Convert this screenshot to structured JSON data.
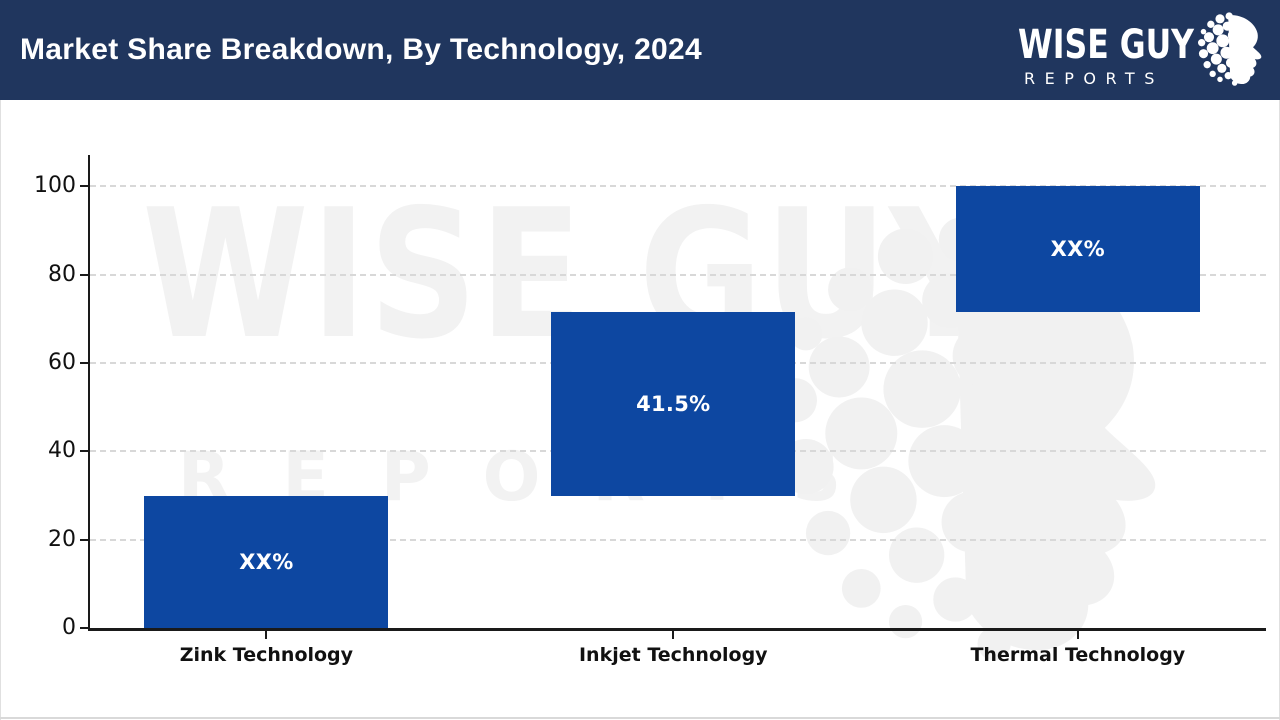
{
  "header": {
    "title": "Market Share Breakdown, By Technology, 2024",
    "bg_color": "#20365e",
    "logo": {
      "name": "WISE GUY REPORTS",
      "line1": "WISE GUY",
      "line2": "REPORTS"
    }
  },
  "watermark": {
    "line1": "WISE GUY",
    "line2": "REPORTS"
  },
  "chart_data": {
    "type": "bar",
    "variant": "floating-segment-waterfall",
    "title": "Market Share Breakdown, By Technology, 2024",
    "categories": [
      "Zink Technology",
      "Inkjet Technology",
      "Thermal Technology"
    ],
    "segments": [
      {
        "category": "Zink Technology",
        "start": 0,
        "end": 30,
        "value": 30,
        "label": "XX%"
      },
      {
        "category": "Inkjet Technology",
        "start": 30,
        "end": 71.5,
        "value": 41.5,
        "label": "41.5%"
      },
      {
        "category": "Thermal Technology",
        "start": 71.5,
        "end": 100,
        "value": 28.5,
        "label": "XX%"
      }
    ],
    "yticks": [
      0,
      20,
      40,
      60,
      80,
      100
    ],
    "ylim": [
      0,
      107
    ],
    "xlabel": "",
    "ylabel": "",
    "grid": "horizontal-dashed",
    "legend": "none",
    "bar_color": "#0d47a1",
    "bar_label_color": "#ffffff",
    "gridline_color": "#d8d8d8",
    "axis_color": "#1a1a1a"
  }
}
